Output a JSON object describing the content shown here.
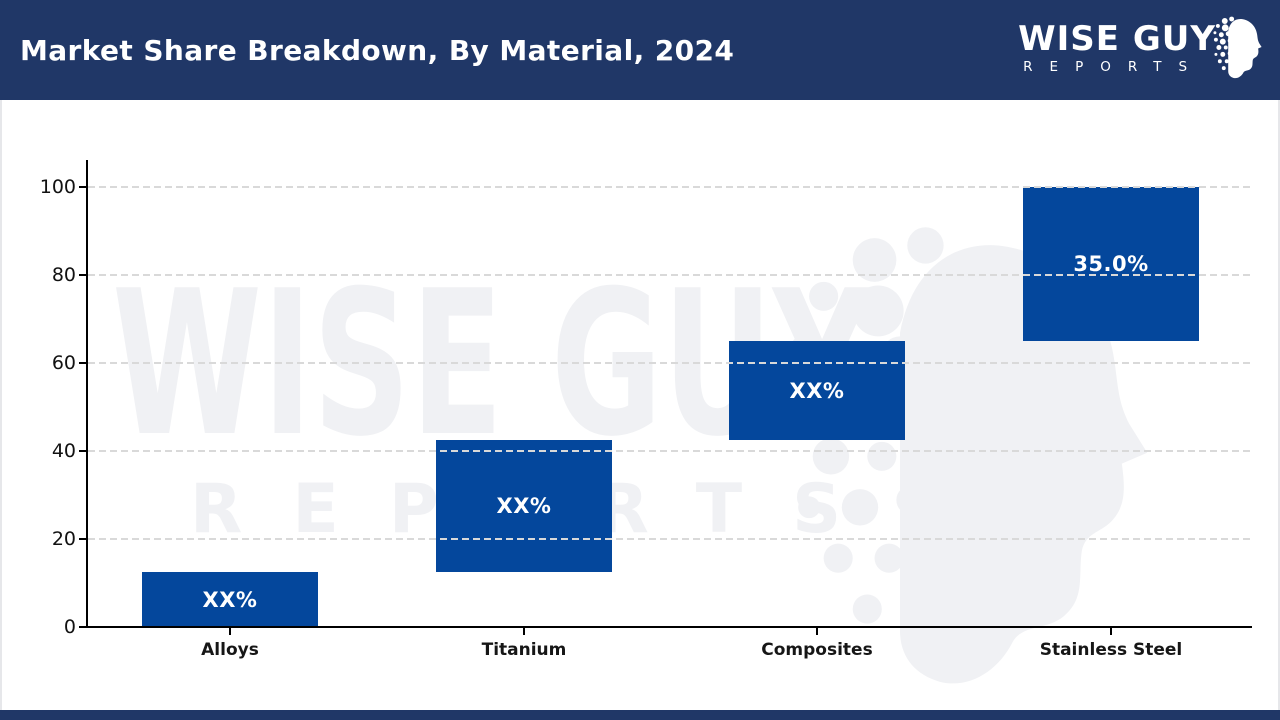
{
  "header": {
    "title": "Market Share Breakdown, By Material, 2024",
    "logo": {
      "wordmark": "WISE GUY",
      "reports_label": "REPORTS"
    }
  },
  "watermark": {
    "line1": "WISE GUY",
    "line2": "REPORTS"
  },
  "chart_data": {
    "type": "bar",
    "variant": "waterfall",
    "title": "Market Share Breakdown, By Material, 2024",
    "categories": [
      "Alloys",
      "Titanium",
      "Composites",
      "Stainless Steel"
    ],
    "segments": [
      {
        "category": "Alloys",
        "start": 0,
        "end": 12.5,
        "value_label": "XX%"
      },
      {
        "category": "Titanium",
        "start": 12.5,
        "end": 42.5,
        "value_label": "XX%"
      },
      {
        "category": "Composites",
        "start": 42.5,
        "end": 65,
        "value_label": "XX%"
      },
      {
        "category": "Stainless Steel",
        "start": 65,
        "end": 100,
        "value_label": "35.0%"
      }
    ],
    "ylim": [
      0,
      100
    ],
    "yticks": [
      0,
      20,
      40,
      60,
      80,
      100
    ],
    "xlabel": "",
    "ylabel": "",
    "grid": "horizontal dashed, drawn above bars",
    "legend": "none",
    "bar_color": "#04479c",
    "bar_label_color": "#ffffff"
  },
  "colors": {
    "header_bg": "#203767",
    "bar": "#04479c",
    "grid": "#d9d9d9",
    "axis": "#000000",
    "watermark": "#f0f1f4",
    "text_on_dark": "#ffffff",
    "tick_text": "#111111"
  }
}
